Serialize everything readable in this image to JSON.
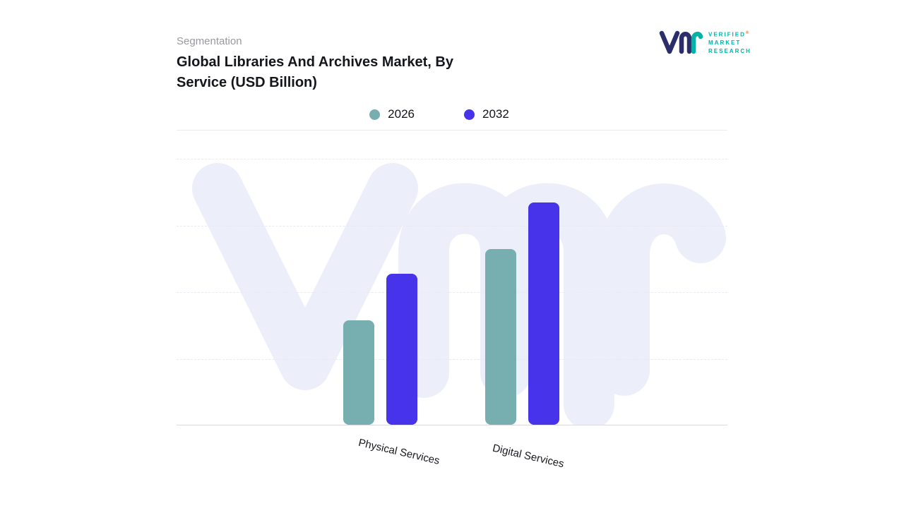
{
  "header": {
    "eyebrow": "Segmentation",
    "title": "Global Libraries And Archives Market, By Service (USD Billion)"
  },
  "logo": {
    "line1": "VERIFIED",
    "line2": "MARKET",
    "line3": "RESEARCH",
    "registered": "®",
    "teal": "#00b3a6",
    "navy": "#2b2e6b",
    "orange": "#f06b21"
  },
  "legend": [
    {
      "label": "2026",
      "color": "#77aeb0"
    },
    {
      "label": "2032",
      "color": "#4733e9"
    }
  ],
  "chart_data": {
    "type": "bar",
    "categories": [
      "Physical Services",
      "Digital Services"
    ],
    "series": [
      {
        "name": "2026",
        "color": "#77aeb0",
        "values": [
          4.7,
          7.9
        ]
      },
      {
        "name": "2032",
        "color": "#4733e9",
        "values": [
          6.8,
          10
        ]
      }
    ],
    "title": "Global Libraries And Archives Market, By Service (USD Billion)",
    "xlabel": "",
    "ylabel": "",
    "ylim": [
      0,
      12
    ],
    "grid": "horizontal-dashed",
    "legend_position": "top",
    "value_axis_labels_visible": false,
    "note_colors": {
      "teal_2026": "#77aeb0",
      "indigo_2032": "#4733e9",
      "watermark": "#eceefa"
    }
  }
}
